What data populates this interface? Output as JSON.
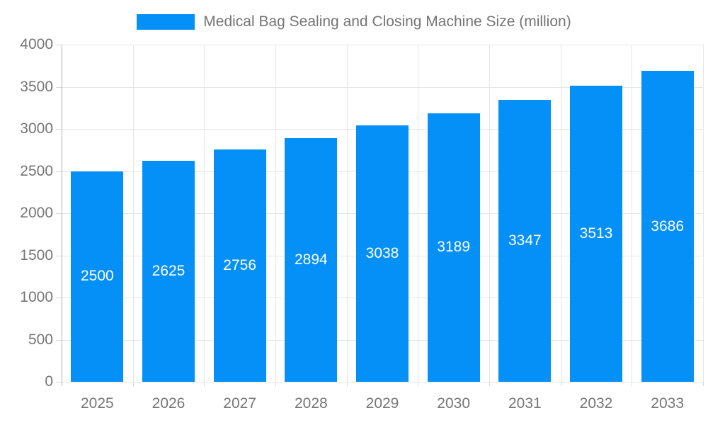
{
  "legend": {
    "label": "Medical Bag Sealing and Closing Machine Size (million)"
  },
  "colors": {
    "bar": "#0590F8",
    "grid": "#E6E6E6",
    "axis": "#B3B3B3",
    "tick": "#D9D9D9",
    "text": "#757575",
    "value_label": "#FFFFFF",
    "background": "#FFFFFF"
  },
  "chart_data": {
    "type": "bar",
    "title": "Medical Bag Sealing and Closing Machine Size (million)",
    "categories": [
      "2025",
      "2026",
      "2027",
      "2028",
      "2029",
      "2030",
      "2031",
      "2032",
      "2033"
    ],
    "values": [
      2500,
      2625,
      2756,
      2894,
      3038,
      3189,
      3347,
      3513,
      3686
    ],
    "xlabel": "",
    "ylabel": "",
    "ylim": [
      0,
      4000
    ],
    "ytick_step": 500,
    "ytick_labels": [
      "0",
      "500",
      "1000",
      "1500",
      "2000",
      "2500",
      "3000",
      "3500",
      "4000"
    ],
    "grid": true,
    "legend_position": "top-center",
    "value_label_position": "inside-center",
    "series": [
      {
        "name": "Medical Bag Sealing and Closing Machine Size (million)",
        "values": [
          2500,
          2625,
          2756,
          2894,
          3038,
          3189,
          3347,
          3513,
          3686
        ]
      }
    ]
  }
}
